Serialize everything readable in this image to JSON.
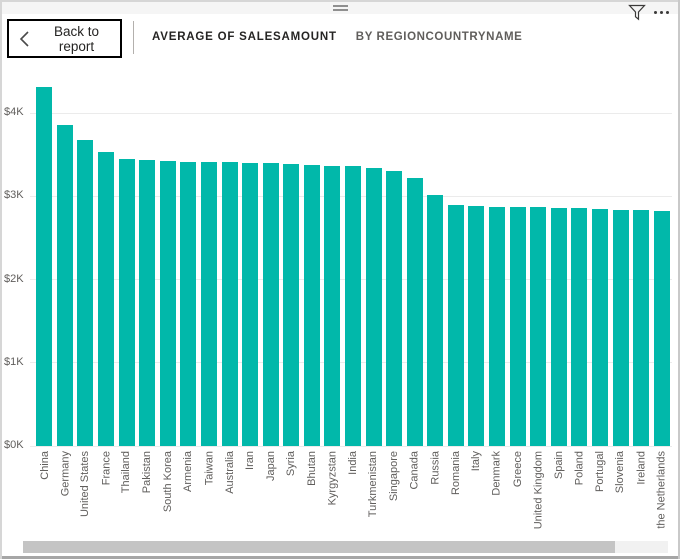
{
  "header": {
    "back_button_label": "Back to report",
    "title": "AVERAGE OF SALESAMOUNT",
    "subtitle": "BY REGIONCOUNTRYNAME"
  },
  "icons": {
    "back": "chevron-left",
    "drag": "drag-handle",
    "filter": "funnel",
    "more": "ellipsis"
  },
  "colors": {
    "bar": "#01B8AA",
    "title_text": "#252423",
    "subtitle_text": "#605E5C",
    "axis_text": "#605E5C",
    "gridline": "#EBEBEB",
    "back_button_border": "#000000",
    "scrollbar_thumb": "#C4C4C4",
    "scrollbar_track": "#F1F1F1"
  },
  "chart_data": {
    "type": "bar",
    "title": "AVERAGE OF SALESAMOUNT BY REGIONCOUNTRYNAME",
    "xlabel": "",
    "ylabel": "",
    "legend": "none",
    "grid": true,
    "ylim": [
      0,
      4500
    ],
    "y_ticks": [
      {
        "label": "$0K",
        "value": 0
      },
      {
        "label": "$1K",
        "value": 1000
      },
      {
        "label": "$2K",
        "value": 2000
      },
      {
        "label": "$3K",
        "value": 3000
      },
      {
        "label": "$4K",
        "value": 4000
      }
    ],
    "categories": [
      "China",
      "Germany",
      "United States",
      "France",
      "Thailand",
      "Pakistan",
      "South Korea",
      "Armenia",
      "Taiwan",
      "Australia",
      "Iran",
      "Japan",
      "Syria",
      "Bhutan",
      "Kyrgyzstan",
      "India",
      "Turkmenistan",
      "Singapore",
      "Canada",
      "Russia",
      "Romania",
      "Italy",
      "Denmark",
      "Greece",
      "United Kingdom",
      "Spain",
      "Poland",
      "Portugal",
      "Slovenia",
      "Ireland",
      "the Netherlands"
    ],
    "values": [
      4310,
      3850,
      3670,
      3530,
      3450,
      3430,
      3420,
      3415,
      3410,
      3410,
      3400,
      3400,
      3390,
      3370,
      3365,
      3360,
      3340,
      3300,
      3220,
      3020,
      2890,
      2880,
      2875,
      2870,
      2865,
      2860,
      2855,
      2845,
      2835,
      2830,
      2820
    ],
    "bar_color": "#01B8AA"
  }
}
